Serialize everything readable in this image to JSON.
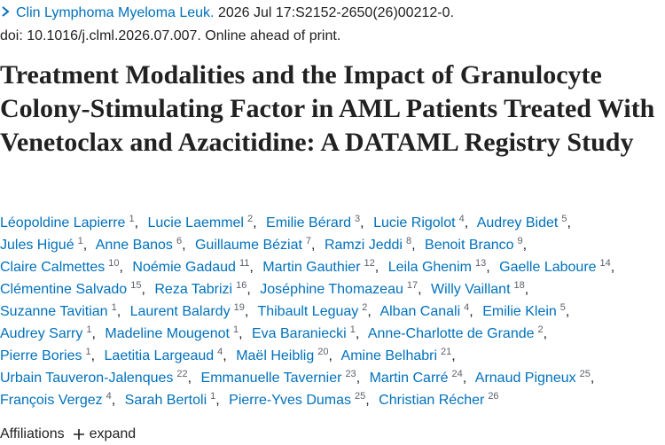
{
  "citation": {
    "journal": "Clin Lymphoma Myeloma Leuk.",
    "details": "2026 Jul 17:S2152-2650(26)00212-0.",
    "doi": "doi: 10.1016/j.clml.2026.07.007. Online ahead of print."
  },
  "title": "Treatment Modalities and the Impact of Granulocyte Colony-Stimulating Factor in AML Patients Treated With Venetoclax and Azacitidine: A DATAML Registry Study",
  "author_lines": [
    [
      {
        "name": "Léopoldine Lapierre",
        "aff": 1
      },
      {
        "name": "Lucie Laemmel",
        "aff": 2
      },
      {
        "name": "Emilie Bérard",
        "aff": 3
      },
      {
        "name": "Lucie Rigolot",
        "aff": 4
      },
      {
        "name": "Audrey Bidet",
        "aff": 5
      }
    ],
    [
      {
        "name": "Jules Higué",
        "aff": 1
      },
      {
        "name": "Anne Banos",
        "aff": 6
      },
      {
        "name": "Guillaume Béziat",
        "aff": 7
      },
      {
        "name": "Ramzi Jeddi",
        "aff": 8
      },
      {
        "name": "Benoit Branco",
        "aff": 9
      }
    ],
    [
      {
        "name": "Claire Calmettes",
        "aff": 10
      },
      {
        "name": "Noémie Gadaud",
        "aff": 11
      },
      {
        "name": "Martin Gauthier",
        "aff": 12
      },
      {
        "name": "Leila Ghenim",
        "aff": 13
      },
      {
        "name": "Gaelle Laboure",
        "aff": 14
      }
    ],
    [
      {
        "name": "Clémentine Salvado",
        "aff": 15
      },
      {
        "name": "Reza Tabrizi",
        "aff": 16
      },
      {
        "name": "Joséphine Thomazeau",
        "aff": 17
      },
      {
        "name": "Willy Vaillant",
        "aff": 18
      }
    ],
    [
      {
        "name": "Suzanne Tavitian",
        "aff": 1
      },
      {
        "name": "Laurent Balardy",
        "aff": 19
      },
      {
        "name": "Thibault Leguay",
        "aff": 2
      },
      {
        "name": "Alban Canali",
        "aff": 4
      },
      {
        "name": "Emilie Klein",
        "aff": 5
      }
    ],
    [
      {
        "name": "Audrey Sarry",
        "aff": 1
      },
      {
        "name": "Madeline Mougenot",
        "aff": 1
      },
      {
        "name": "Eva Baraniecki",
        "aff": 1
      },
      {
        "name": "Anne-Charlotte de Grande",
        "aff": 2
      }
    ],
    [
      {
        "name": "Pierre Bories",
        "aff": 1
      },
      {
        "name": "Laetitia Largeaud",
        "aff": 4
      },
      {
        "name": "Maël Heiblig",
        "aff": 20
      },
      {
        "name": "Amine Belhabri",
        "aff": 21
      }
    ],
    [
      {
        "name": "Urbain Tauveron-Jalenques",
        "aff": 22
      },
      {
        "name": "Emmanuelle Tavernier",
        "aff": 23
      },
      {
        "name": "Martin Carré",
        "aff": 24
      },
      {
        "name": "Arnaud Pigneux",
        "aff": 25
      }
    ],
    [
      {
        "name": "François Vergez",
        "aff": 4
      },
      {
        "name": "Sarah Bertoli",
        "aff": 1
      },
      {
        "name": "Pierre-Yves Dumas",
        "aff": 25
      },
      {
        "name": "Christian Récher",
        "aff": 26
      }
    ]
  ],
  "affiliations": {
    "label": "Affiliations",
    "action": "expand"
  }
}
